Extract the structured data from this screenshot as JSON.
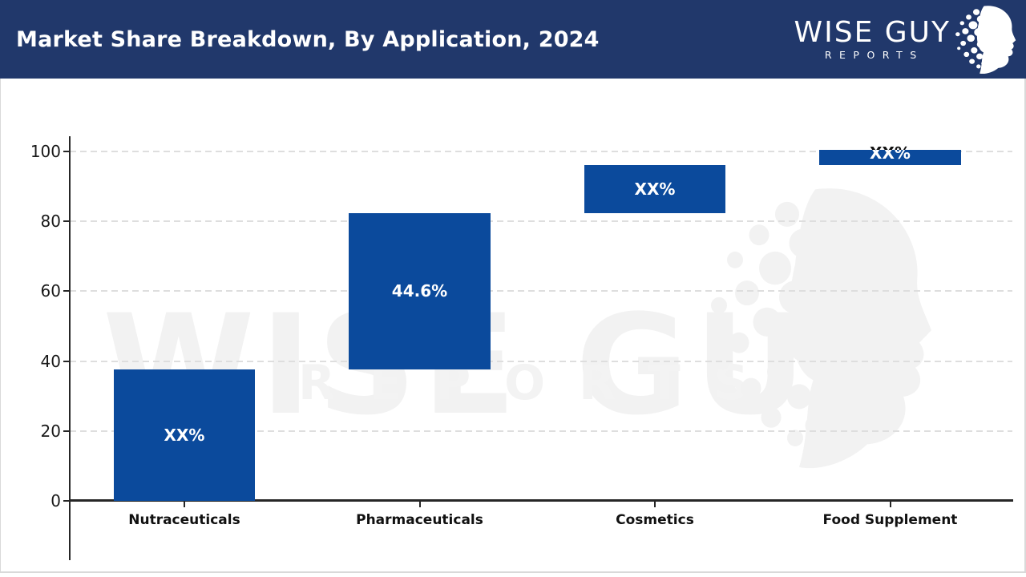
{
  "header": {
    "title": "Market Share Breakdown, By Application, 2024",
    "logo": {
      "line1": "WISE GUY",
      "line2": "REPORTS"
    }
  },
  "watermark": {
    "line1": "WISE GUY",
    "line2": "REPORTS"
  },
  "chart_data": {
    "type": "bar",
    "subtype": "waterfall",
    "title": "Market Share Breakdown, By Application, 2024",
    "xlabel": "",
    "ylabel": "",
    "categories": [
      "Nutraceuticals",
      "Pharmaceuticals",
      "Cosmetics",
      "Food Supplement"
    ],
    "segments": [
      {
        "category": "Nutraceuticals",
        "start": 0,
        "end": 37.7,
        "label": "XX%"
      },
      {
        "category": "Pharmaceuticals",
        "start": 37.7,
        "end": 82.3,
        "label": "44.6%"
      },
      {
        "category": "Cosmetics",
        "start": 82.3,
        "end": 96.2,
        "label": "XX%"
      },
      {
        "category": "Food Supplement",
        "start": 96.2,
        "end": 100.4,
        "label": "XX%"
      }
    ],
    "y_ticks": [
      0,
      20,
      40,
      60,
      80,
      100
    ],
    "ylim": [
      0,
      105
    ],
    "grid": "dashed-horizontal",
    "legend": "none",
    "bar_color": "#0b4a9c",
    "bar_label_color": "#ffffff"
  },
  "colors": {
    "header_bg": "#21386b",
    "bar": "#0b4a9c",
    "axis": "#262626",
    "grid": "#dedede",
    "watermark": "#f2f2f2",
    "edge": "#d9d9d9"
  }
}
